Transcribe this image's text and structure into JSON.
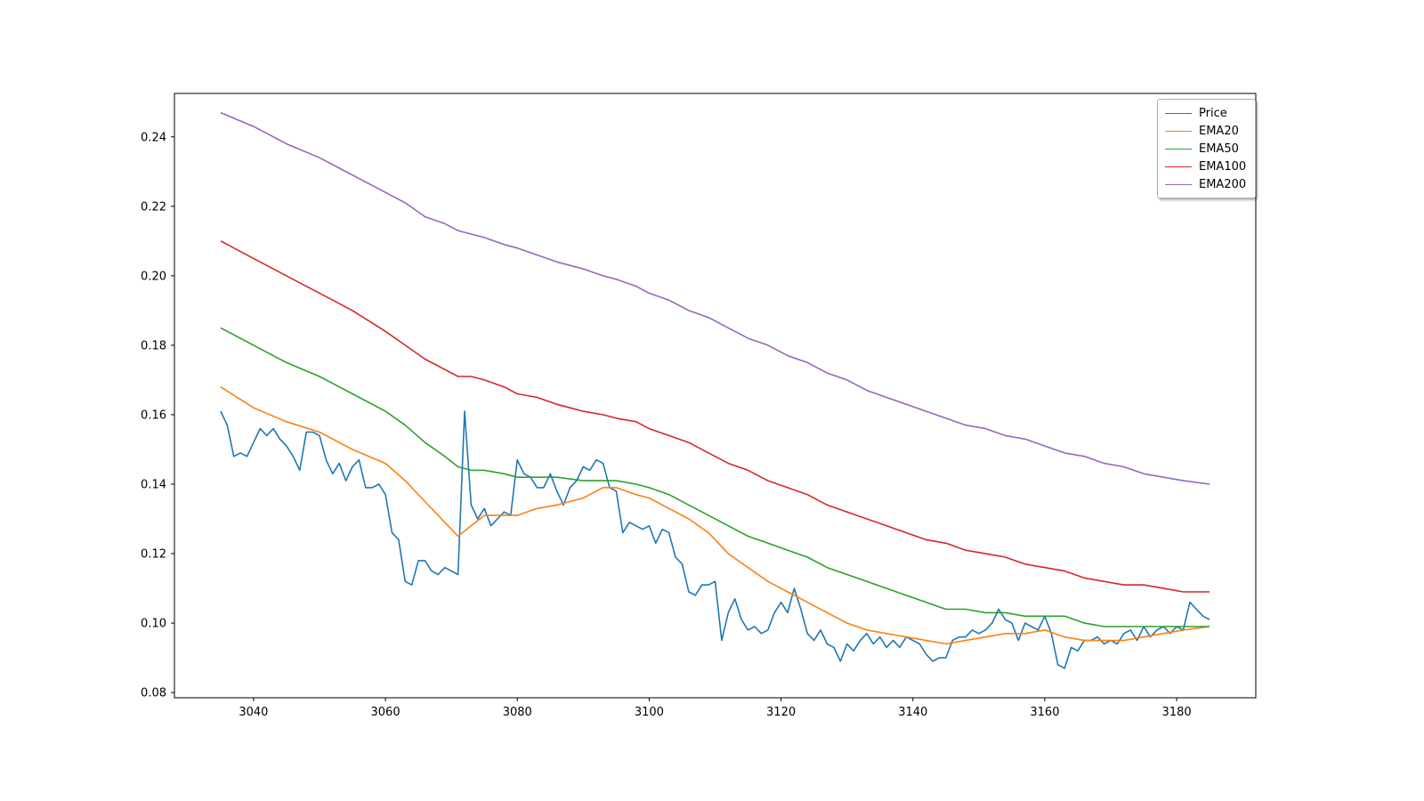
{
  "figure": {
    "background": "#ffffff"
  },
  "chart_data": {
    "type": "line",
    "title": "",
    "xlabel": "",
    "ylabel": "",
    "grid": false,
    "legend_position": "upper right",
    "xlim": [
      3028,
      3192
    ],
    "ylim": [
      0.0785,
      0.2525
    ],
    "x_ticks": [
      3040,
      3060,
      3080,
      3100,
      3120,
      3140,
      3160,
      3180
    ],
    "y_ticks": [
      0.08,
      0.1,
      0.12,
      0.14,
      0.16,
      0.18,
      0.2,
      0.22,
      0.24
    ],
    "series": [
      {
        "name": "Price",
        "color": "#1f77b4",
        "x_start": 3035,
        "x_step": 1,
        "y": [
          0.161,
          0.157,
          0.148,
          0.149,
          0.148,
          0.152,
          0.156,
          0.154,
          0.156,
          0.153,
          0.151,
          0.148,
          0.144,
          0.155,
          0.155,
          0.154,
          0.147,
          0.143,
          0.146,
          0.141,
          0.145,
          0.147,
          0.139,
          0.139,
          0.14,
          0.137,
          0.126,
          0.124,
          0.112,
          0.111,
          0.118,
          0.118,
          0.115,
          0.114,
          0.116,
          0.115,
          0.114,
          0.161,
          0.134,
          0.13,
          0.133,
          0.128,
          0.13,
          0.132,
          0.131,
          0.147,
          0.143,
          0.142,
          0.139,
          0.139,
          0.143,
          0.138,
          0.134,
          0.139,
          0.141,
          0.145,
          0.144,
          0.147,
          0.146,
          0.139,
          0.138,
          0.126,
          0.129,
          0.128,
          0.127,
          0.128,
          0.123,
          0.127,
          0.126,
          0.119,
          0.117,
          0.109,
          0.108,
          0.111,
          0.111,
          0.112,
          0.095,
          0.103,
          0.107,
          0.101,
          0.098,
          0.099,
          0.097,
          0.098,
          0.103,
          0.106,
          0.103,
          0.11,
          0.104,
          0.097,
          0.095,
          0.098,
          0.094,
          0.093,
          0.089,
          0.094,
          0.092,
          0.095,
          0.097,
          0.094,
          0.096,
          0.093,
          0.095,
          0.093,
          0.096,
          0.095,
          0.094,
          0.091,
          0.089,
          0.09,
          0.09,
          0.095,
          0.096,
          0.096,
          0.098,
          0.097,
          0.098,
          0.1,
          0.104,
          0.101,
          0.1,
          0.095,
          0.1,
          0.099,
          0.098,
          0.102,
          0.097,
          0.088,
          0.087,
          0.093,
          0.092,
          0.095,
          0.095,
          0.096,
          0.094,
          0.095,
          0.094,
          0.097,
          0.098,
          0.095,
          0.099,
          0.096,
          0.098,
          0.099,
          0.097,
          0.099,
          0.098,
          0.106,
          0.104,
          0.102,
          0.101
        ]
      },
      {
        "name": "EMA20",
        "color": "#ff7f0e",
        "x": [
          3035,
          3040,
          3045,
          3050,
          3055,
          3060,
          3063,
          3066,
          3069,
          3071,
          3073,
          3075,
          3078,
          3080,
          3083,
          3086,
          3090,
          3093,
          3095,
          3098,
          3100,
          3103,
          3106,
          3109,
          3112,
          3115,
          3118,
          3121,
          3124,
          3127,
          3130,
          3133,
          3136,
          3139,
          3142,
          3145,
          3148,
          3151,
          3154,
          3157,
          3160,
          3163,
          3166,
          3169,
          3172,
          3175,
          3178,
          3181,
          3185
        ],
        "y": [
          0.168,
          0.162,
          0.158,
          0.155,
          0.15,
          0.146,
          0.141,
          0.135,
          0.129,
          0.125,
          0.128,
          0.131,
          0.131,
          0.131,
          0.133,
          0.134,
          0.136,
          0.139,
          0.139,
          0.137,
          0.136,
          0.133,
          0.13,
          0.126,
          0.12,
          0.116,
          0.112,
          0.109,
          0.106,
          0.103,
          0.1,
          0.098,
          0.097,
          0.096,
          0.095,
          0.094,
          0.095,
          0.096,
          0.097,
          0.097,
          0.098,
          0.096,
          0.095,
          0.095,
          0.095,
          0.096,
          0.097,
          0.098,
          0.099
        ]
      },
      {
        "name": "EMA50",
        "color": "#2ca02c",
        "x": [
          3035,
          3040,
          3045,
          3050,
          3055,
          3060,
          3063,
          3066,
          3069,
          3071,
          3073,
          3075,
          3078,
          3080,
          3083,
          3086,
          3090,
          3093,
          3095,
          3098,
          3100,
          3103,
          3106,
          3109,
          3112,
          3115,
          3118,
          3121,
          3124,
          3127,
          3130,
          3133,
          3136,
          3139,
          3142,
          3145,
          3148,
          3151,
          3154,
          3157,
          3160,
          3163,
          3166,
          3169,
          3172,
          3175,
          3178,
          3181,
          3185
        ],
        "y": [
          0.185,
          0.18,
          0.175,
          0.171,
          0.166,
          0.161,
          0.157,
          0.152,
          0.148,
          0.145,
          0.144,
          0.144,
          0.143,
          0.142,
          0.142,
          0.142,
          0.141,
          0.141,
          0.141,
          0.14,
          0.139,
          0.137,
          0.134,
          0.131,
          0.128,
          0.125,
          0.123,
          0.121,
          0.119,
          0.116,
          0.114,
          0.112,
          0.11,
          0.108,
          0.106,
          0.104,
          0.104,
          0.103,
          0.103,
          0.102,
          0.102,
          0.102,
          0.1,
          0.099,
          0.099,
          0.099,
          0.099,
          0.099,
          0.099
        ]
      },
      {
        "name": "EMA100",
        "color": "#d62728",
        "x": [
          3035,
          3040,
          3045,
          3050,
          3055,
          3060,
          3063,
          3066,
          3069,
          3071,
          3073,
          3075,
          3078,
          3080,
          3083,
          3086,
          3090,
          3093,
          3095,
          3098,
          3100,
          3103,
          3106,
          3109,
          3112,
          3115,
          3118,
          3121,
          3124,
          3127,
          3130,
          3133,
          3136,
          3139,
          3142,
          3145,
          3148,
          3151,
          3154,
          3157,
          3160,
          3163,
          3166,
          3169,
          3172,
          3175,
          3178,
          3181,
          3185
        ],
        "y": [
          0.21,
          0.205,
          0.2,
          0.195,
          0.19,
          0.184,
          0.18,
          0.176,
          0.173,
          0.171,
          0.171,
          0.17,
          0.168,
          0.166,
          0.165,
          0.163,
          0.161,
          0.16,
          0.159,
          0.158,
          0.156,
          0.154,
          0.152,
          0.149,
          0.146,
          0.144,
          0.141,
          0.139,
          0.137,
          0.134,
          0.132,
          0.13,
          0.128,
          0.126,
          0.124,
          0.123,
          0.121,
          0.12,
          0.119,
          0.117,
          0.116,
          0.115,
          0.113,
          0.112,
          0.111,
          0.111,
          0.11,
          0.109,
          0.109
        ]
      },
      {
        "name": "EMA200",
        "color": "#9467bd",
        "x": [
          3035,
          3040,
          3045,
          3050,
          3055,
          3060,
          3063,
          3066,
          3069,
          3071,
          3073,
          3075,
          3078,
          3080,
          3083,
          3086,
          3090,
          3093,
          3095,
          3098,
          3100,
          3103,
          3106,
          3109,
          3112,
          3115,
          3118,
          3121,
          3124,
          3127,
          3130,
          3133,
          3136,
          3139,
          3142,
          3145,
          3148,
          3151,
          3154,
          3157,
          3160,
          3163,
          3166,
          3169,
          3172,
          3175,
          3178,
          3181,
          3185
        ],
        "y": [
          0.247,
          0.243,
          0.238,
          0.234,
          0.229,
          0.224,
          0.221,
          0.217,
          0.215,
          0.213,
          0.212,
          0.211,
          0.209,
          0.208,
          0.206,
          0.204,
          0.202,
          0.2,
          0.199,
          0.197,
          0.195,
          0.193,
          0.19,
          0.188,
          0.185,
          0.182,
          0.18,
          0.177,
          0.175,
          0.172,
          0.17,
          0.167,
          0.165,
          0.163,
          0.161,
          0.159,
          0.157,
          0.156,
          0.154,
          0.153,
          0.151,
          0.149,
          0.148,
          0.146,
          0.145,
          0.143,
          0.142,
          0.141,
          0.14
        ]
      }
    ]
  }
}
